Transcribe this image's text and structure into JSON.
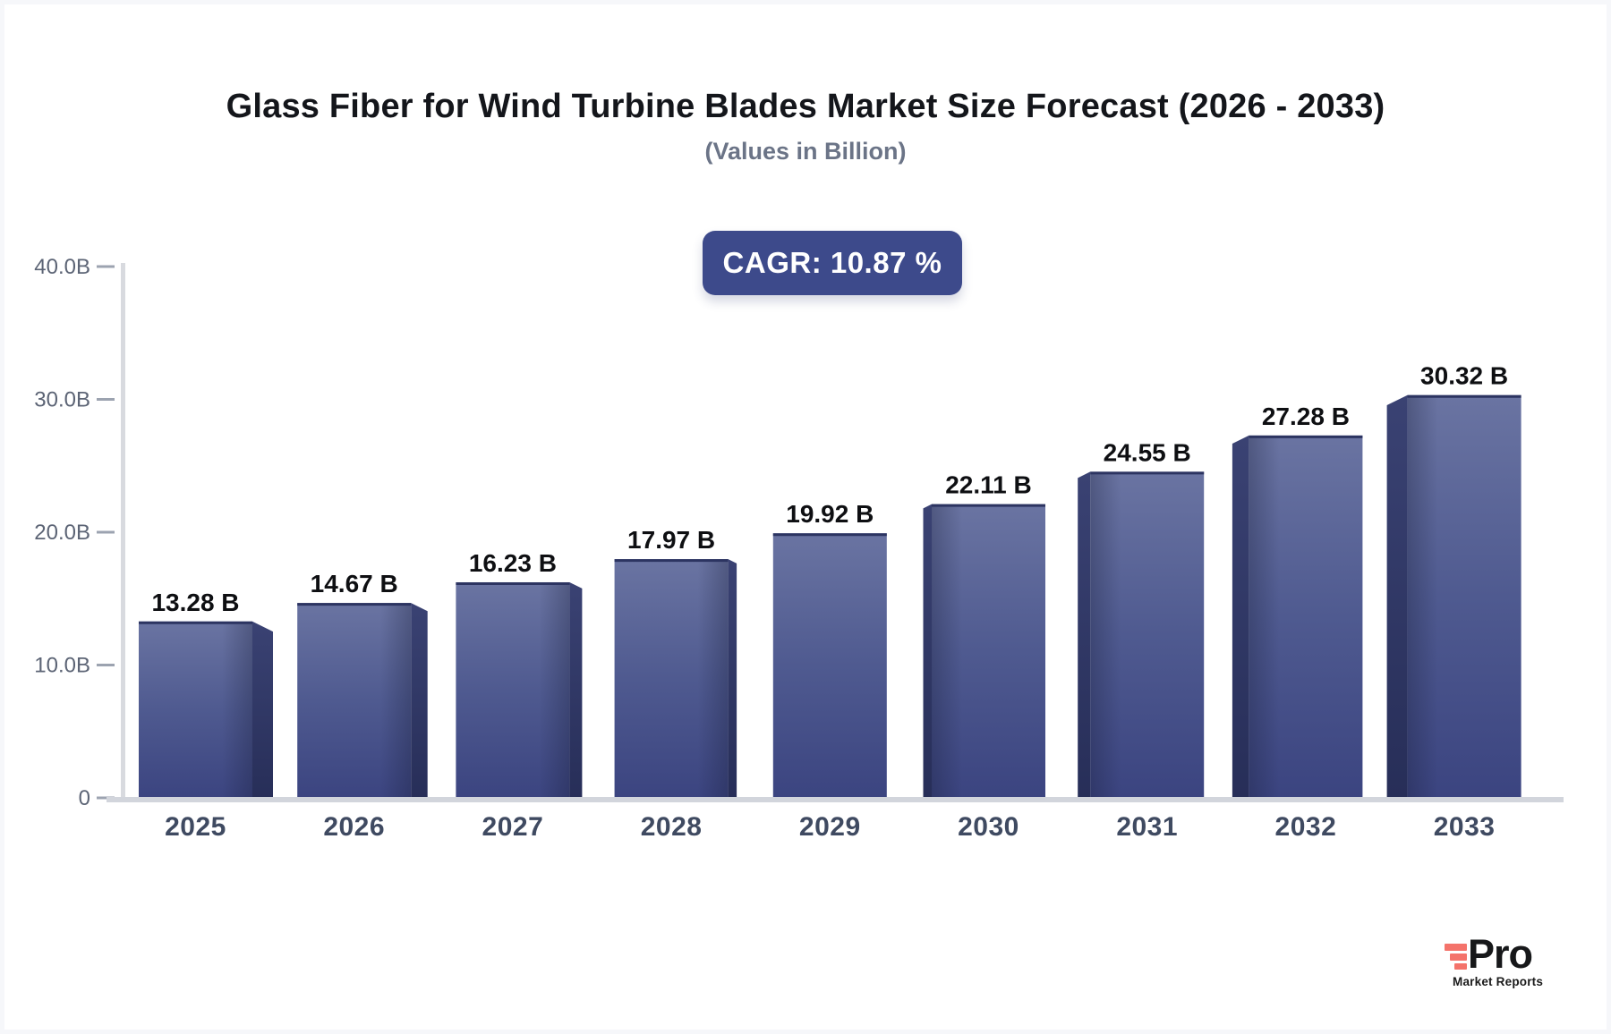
{
  "header": {
    "title": "Glass Fiber for Wind Turbine Blades Market Size Forecast (2026 - 2033)",
    "subtitle": "(Values in Billion)",
    "cagr_label": "CAGR: 10.87 %"
  },
  "chart_data": {
    "type": "bar",
    "title": "Glass Fiber for Wind Turbine Blades Market Size Forecast (2026 - 2033)",
    "subtitle": "(Values in Billion)",
    "cagr_percent": 10.87,
    "categories": [
      "2025",
      "2026",
      "2027",
      "2028",
      "2029",
      "2030",
      "2031",
      "2032",
      "2033"
    ],
    "values": [
      13.28,
      14.67,
      16.23,
      17.97,
      19.92,
      22.11,
      24.55,
      27.28,
      30.32
    ],
    "value_labels": [
      "13.28 B",
      "14.67 B",
      "16.23 B",
      "17.97 B",
      "19.92 B",
      "22.11 B",
      "24.55 B",
      "27.28 B",
      "30.32 B"
    ],
    "unit": "Billion",
    "xlabel": "",
    "ylabel": "",
    "ylim": [
      0,
      40
    ],
    "yticks": [
      {
        "label": "0",
        "value": 0
      },
      {
        "label": "10.0B",
        "value": 10
      },
      {
        "label": "20.0B",
        "value": 20
      },
      {
        "label": "30.0B",
        "value": 30
      },
      {
        "label": "40.0B",
        "value": 40
      }
    ],
    "grid": false,
    "legend": "none",
    "colors": {
      "bar_face_top": "#6a74a2",
      "bar_face_mid": "#4f5a90",
      "bar_face_bottom": "#3b4480",
      "bar_side_top": "#3a4273",
      "bar_side_bottom": "#272e58",
      "bar_top_edge": "#2c3461",
      "axis_line": "#d8dadf",
      "baseline": "#d2d5dc",
      "tick_dash": "#9ca3b0",
      "ytick_text": "#5c6475",
      "xtick_text": "#3f4a61",
      "value_text": "#0e0f12",
      "badge_bg": "#3d4a8b"
    }
  },
  "logo": {
    "name": "Pro",
    "tagline": "Market Reports",
    "bars_color": "#f4736b"
  }
}
